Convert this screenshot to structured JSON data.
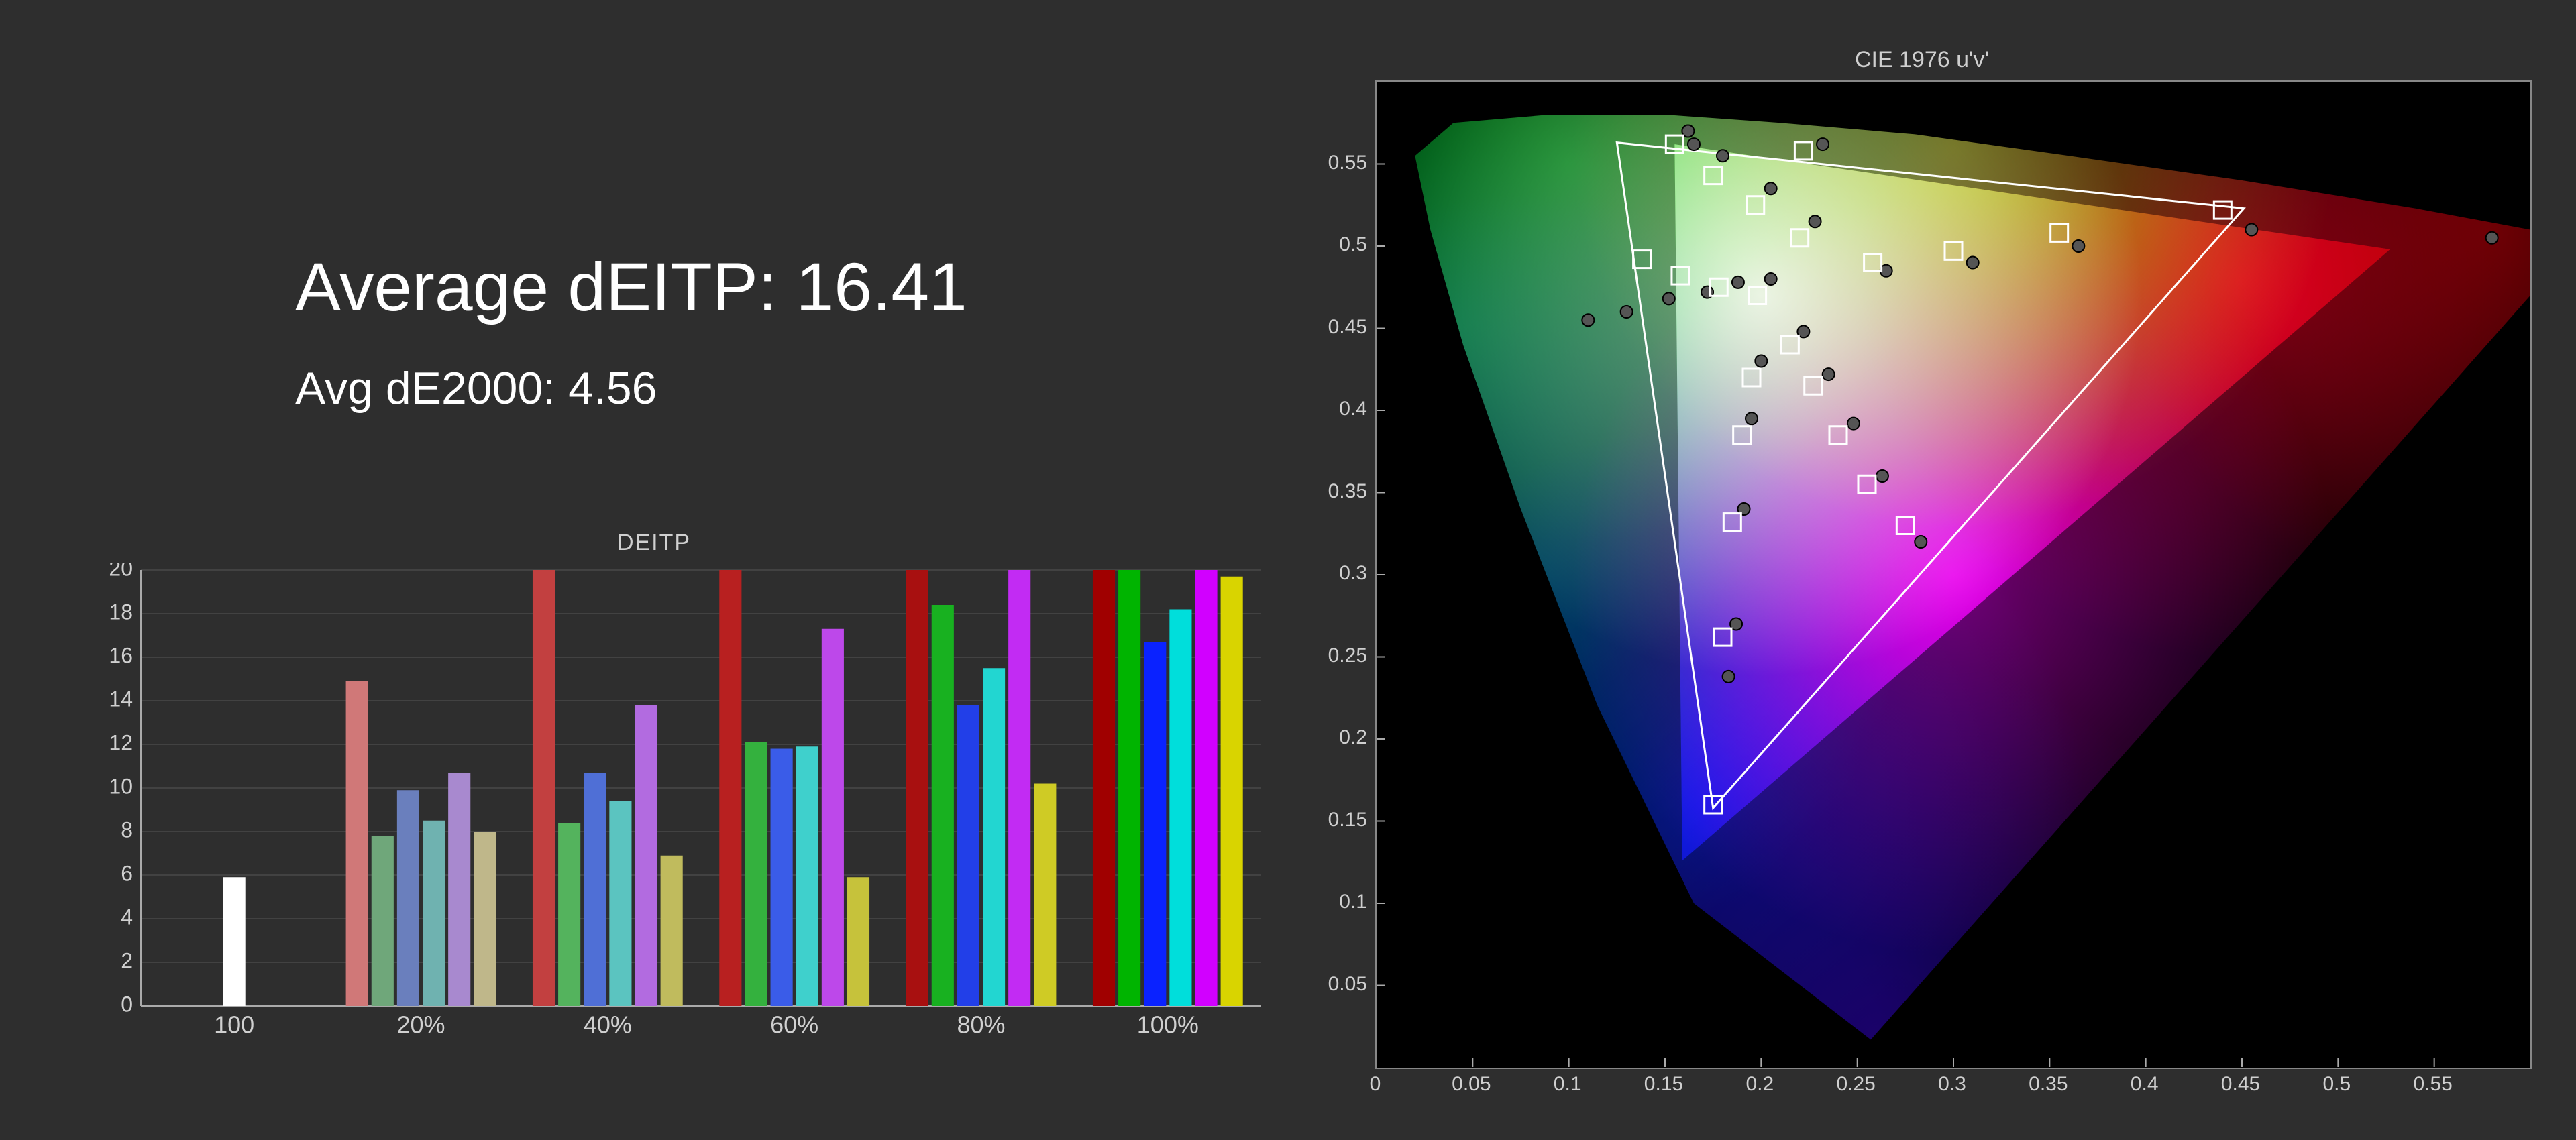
{
  "background_color": "#2e2e2e",
  "text_color": "#e8e8e8",
  "summary": {
    "headline_prefix": "Average dEITP: ",
    "headline_value": "16.41",
    "subhead_prefix": "Avg dE2000: ",
    "subhead_value": "4.56",
    "headline_fontsize": 102,
    "subhead_fontsize": 68
  },
  "bar_chart": {
    "title": "DEITP",
    "title_fontsize": 34,
    "ylim": [
      0,
      20
    ],
    "ytick_step": 2,
    "yticks": [
      0,
      2,
      4,
      6,
      8,
      10,
      12,
      14,
      16,
      18,
      20
    ],
    "grid_color": "#555555",
    "axis_color": "#aaaaaa",
    "label_fontsize": 32,
    "xlabels": [
      "100",
      "20%",
      "40%",
      "60%",
      "80%",
      "100%"
    ],
    "bar_width_ratio": 0.85,
    "groups": [
      {
        "label": "100",
        "bars": [
          {
            "value": 5.9,
            "color": "#ffffff"
          }
        ]
      },
      {
        "label": "20%",
        "bars": [
          {
            "value": 14.9,
            "color": "#d07878"
          },
          {
            "value": 7.8,
            "color": "#6fa77a"
          },
          {
            "value": 9.9,
            "color": "#6a7fbd"
          },
          {
            "value": 8.5,
            "color": "#6fb2b0"
          },
          {
            "value": 10.7,
            "color": "#a889cf"
          },
          {
            "value": 8.0,
            "color": "#bfb78a"
          }
        ]
      },
      {
        "label": "40%",
        "bars": [
          {
            "value": 22.0,
            "color": "#c24040"
          },
          {
            "value": 8.4,
            "color": "#54b35d"
          },
          {
            "value": 10.7,
            "color": "#4f6fd6"
          },
          {
            "value": 9.4,
            "color": "#5bc4c0"
          },
          {
            "value": 13.8,
            "color": "#b26be0"
          },
          {
            "value": 6.9,
            "color": "#c0bb5d"
          }
        ]
      },
      {
        "label": "60%",
        "bars": [
          {
            "value": 22.0,
            "color": "#b82020"
          },
          {
            "value": 12.1,
            "color": "#34b13e"
          },
          {
            "value": 11.8,
            "color": "#3a5ce8"
          },
          {
            "value": 11.9,
            "color": "#3fd0cc"
          },
          {
            "value": 17.3,
            "color": "#bd48ea"
          },
          {
            "value": 5.9,
            "color": "#c6c23b"
          }
        ]
      },
      {
        "label": "80%",
        "bars": [
          {
            "value": 22.0,
            "color": "#a81010"
          },
          {
            "value": 18.4,
            "color": "#18b120"
          },
          {
            "value": 13.8,
            "color": "#223fe8"
          },
          {
            "value": 15.5,
            "color": "#22d6d1"
          },
          {
            "value": 22.0,
            "color": "#c22bf3"
          },
          {
            "value": 10.2,
            "color": "#cfcb25"
          }
        ]
      },
      {
        "label": "100%",
        "bars": [
          {
            "value": 22.0,
            "color": "#a00000"
          },
          {
            "value": 22.0,
            "color": "#00b400"
          },
          {
            "value": 16.7,
            "color": "#0a22ff"
          },
          {
            "value": 18.2,
            "color": "#00dedb"
          },
          {
            "value": 22.0,
            "color": "#d100ff"
          },
          {
            "value": 19.7,
            "color": "#d9d400"
          }
        ]
      }
    ]
  },
  "cie_chart": {
    "title": "CIE 1976 u'v'",
    "title_fontsize": 34,
    "xlim": [
      0,
      0.6
    ],
    "ylim": [
      0,
      0.6
    ],
    "xticks": [
      0,
      0.05,
      0.1,
      0.15,
      0.2,
      0.25,
      0.3,
      0.35,
      0.4,
      0.45,
      0.5,
      0.55
    ],
    "yticks": [
      0.05,
      0.1,
      0.15,
      0.2,
      0.25,
      0.3,
      0.35,
      0.4,
      0.45,
      0.5,
      0.55
    ],
    "tick_fontsize": 30,
    "background_color": "#000000",
    "locus_outline": [
      [
        0.257,
        0.017
      ],
      [
        0.165,
        0.1
      ],
      [
        0.115,
        0.22
      ],
      [
        0.075,
        0.34
      ],
      [
        0.045,
        0.44
      ],
      [
        0.028,
        0.51
      ],
      [
        0.02,
        0.555
      ],
      [
        0.04,
        0.575
      ],
      [
        0.09,
        0.58
      ],
      [
        0.15,
        0.58
      ],
      [
        0.21,
        0.575
      ],
      [
        0.28,
        0.568
      ],
      [
        0.36,
        0.555
      ],
      [
        0.45,
        0.54
      ],
      [
        0.54,
        0.523
      ],
      [
        0.6,
        0.51
      ],
      [
        0.625,
        0.503
      ],
      [
        0.257,
        0.017
      ]
    ],
    "inner_triangle_rec2020": [
      [
        0.155,
        0.562
      ],
      [
        0.527,
        0.498
      ],
      [
        0.159,
        0.126
      ]
    ],
    "inner_triangle_rec709": [
      [
        0.125,
        0.563
      ],
      [
        0.451,
        0.523
      ],
      [
        0.175,
        0.158
      ]
    ],
    "inner_triangle_color": "#ffffff",
    "gamut_gradient_stops": [
      {
        "u": 0.1,
        "v": 0.55,
        "c": "#00ff00"
      },
      {
        "u": 0.04,
        "v": 0.45,
        "c": "#00b36b"
      },
      {
        "u": 0.08,
        "v": 0.3,
        "c": "#008899"
      },
      {
        "u": 0.17,
        "v": 0.16,
        "c": "#0020ff"
      },
      {
        "u": 0.26,
        "v": 0.02,
        "c": "#3a00c8"
      },
      {
        "u": 0.3,
        "v": 0.3,
        "c": "#ff00ff"
      },
      {
        "u": 0.45,
        "v": 0.48,
        "c": "#ff003a"
      },
      {
        "u": 0.58,
        "v": 0.51,
        "c": "#c80000"
      },
      {
        "u": 0.3,
        "v": 0.56,
        "c": "#b8d400"
      },
      {
        "u": 0.2,
        "v": 0.47,
        "c": "#ffffff"
      }
    ],
    "target_marker": {
      "size": 26,
      "stroke": "#ffffff",
      "stroke_width": 3
    },
    "measured_marker": {
      "radius": 9,
      "fill": "#555555",
      "stroke": "#000000",
      "stroke_width": 2
    },
    "targets": [
      [
        0.155,
        0.562
      ],
      [
        0.175,
        0.543
      ],
      [
        0.197,
        0.525
      ],
      [
        0.22,
        0.505
      ],
      [
        0.222,
        0.558
      ],
      [
        0.198,
        0.47
      ],
      [
        0.258,
        0.49
      ],
      [
        0.3,
        0.497
      ],
      [
        0.355,
        0.508
      ],
      [
        0.44,
        0.522
      ],
      [
        0.215,
        0.44
      ],
      [
        0.227,
        0.415
      ],
      [
        0.24,
        0.385
      ],
      [
        0.255,
        0.355
      ],
      [
        0.275,
        0.33
      ],
      [
        0.195,
        0.42
      ],
      [
        0.19,
        0.385
      ],
      [
        0.185,
        0.332
      ],
      [
        0.18,
        0.262
      ],
      [
        0.175,
        0.16
      ],
      [
        0.138,
        0.492
      ],
      [
        0.158,
        0.482
      ],
      [
        0.178,
        0.475
      ]
    ],
    "measured": [
      [
        0.162,
        0.57
      ],
      [
        0.18,
        0.555
      ],
      [
        0.205,
        0.535
      ],
      [
        0.228,
        0.515
      ],
      [
        0.232,
        0.562
      ],
      [
        0.165,
        0.562
      ],
      [
        0.205,
        0.48
      ],
      [
        0.265,
        0.485
      ],
      [
        0.31,
        0.49
      ],
      [
        0.365,
        0.5
      ],
      [
        0.455,
        0.51
      ],
      [
        0.58,
        0.505
      ],
      [
        0.222,
        0.448
      ],
      [
        0.235,
        0.422
      ],
      [
        0.248,
        0.392
      ],
      [
        0.263,
        0.36
      ],
      [
        0.283,
        0.32
      ],
      [
        0.2,
        0.43
      ],
      [
        0.195,
        0.395
      ],
      [
        0.191,
        0.34
      ],
      [
        0.187,
        0.27
      ],
      [
        0.183,
        0.238
      ],
      [
        0.11,
        0.455
      ],
      [
        0.13,
        0.46
      ],
      [
        0.152,
        0.468
      ],
      [
        0.172,
        0.472
      ],
      [
        0.188,
        0.478
      ]
    ]
  }
}
